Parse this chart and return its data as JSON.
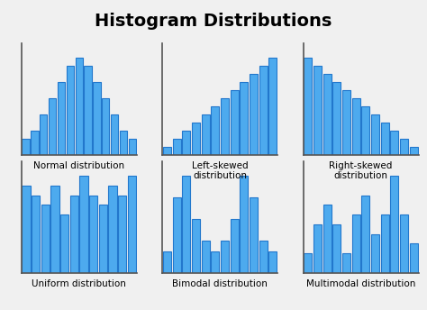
{
  "title": "Histogram Distributions",
  "title_fontsize": 14,
  "title_fontweight": "bold",
  "bar_color": "#4DAAEE",
  "bar_edgecolor": "#2277CC",
  "background_color": "#f0f0f0",
  "label_fontsize": 7.5,
  "distributions": [
    {
      "label": "Normal distribution",
      "values": [
        2,
        3,
        5,
        7,
        9,
        11,
        12,
        11,
        9,
        7,
        5,
        3,
        2
      ]
    },
    {
      "label": "Left-skewed\ndistribution",
      "values": [
        1,
        2,
        3,
        4,
        5,
        6,
        7,
        8,
        9,
        10,
        11,
        12
      ]
    },
    {
      "label": "Right-skewed\ndistribution",
      "values": [
        12,
        11,
        10,
        9,
        8,
        7,
        6,
        5,
        4,
        3,
        2,
        1
      ]
    },
    {
      "label": "Uniform distribution",
      "values": [
        9,
        8,
        7,
        9,
        6,
        8,
        10,
        8,
        7,
        9,
        8,
        10
      ]
    },
    {
      "label": "Bimodal distribution",
      "values": [
        2,
        7,
        9,
        5,
        3,
        2,
        3,
        5,
        9,
        7,
        3,
        2
      ]
    },
    {
      "label": "Multimodal distribution",
      "values": [
        2,
        5,
        7,
        5,
        2,
        6,
        8,
        4,
        6,
        10,
        6,
        3
      ]
    }
  ],
  "spine_color": "#555555",
  "spine_linewidth": 1.2
}
